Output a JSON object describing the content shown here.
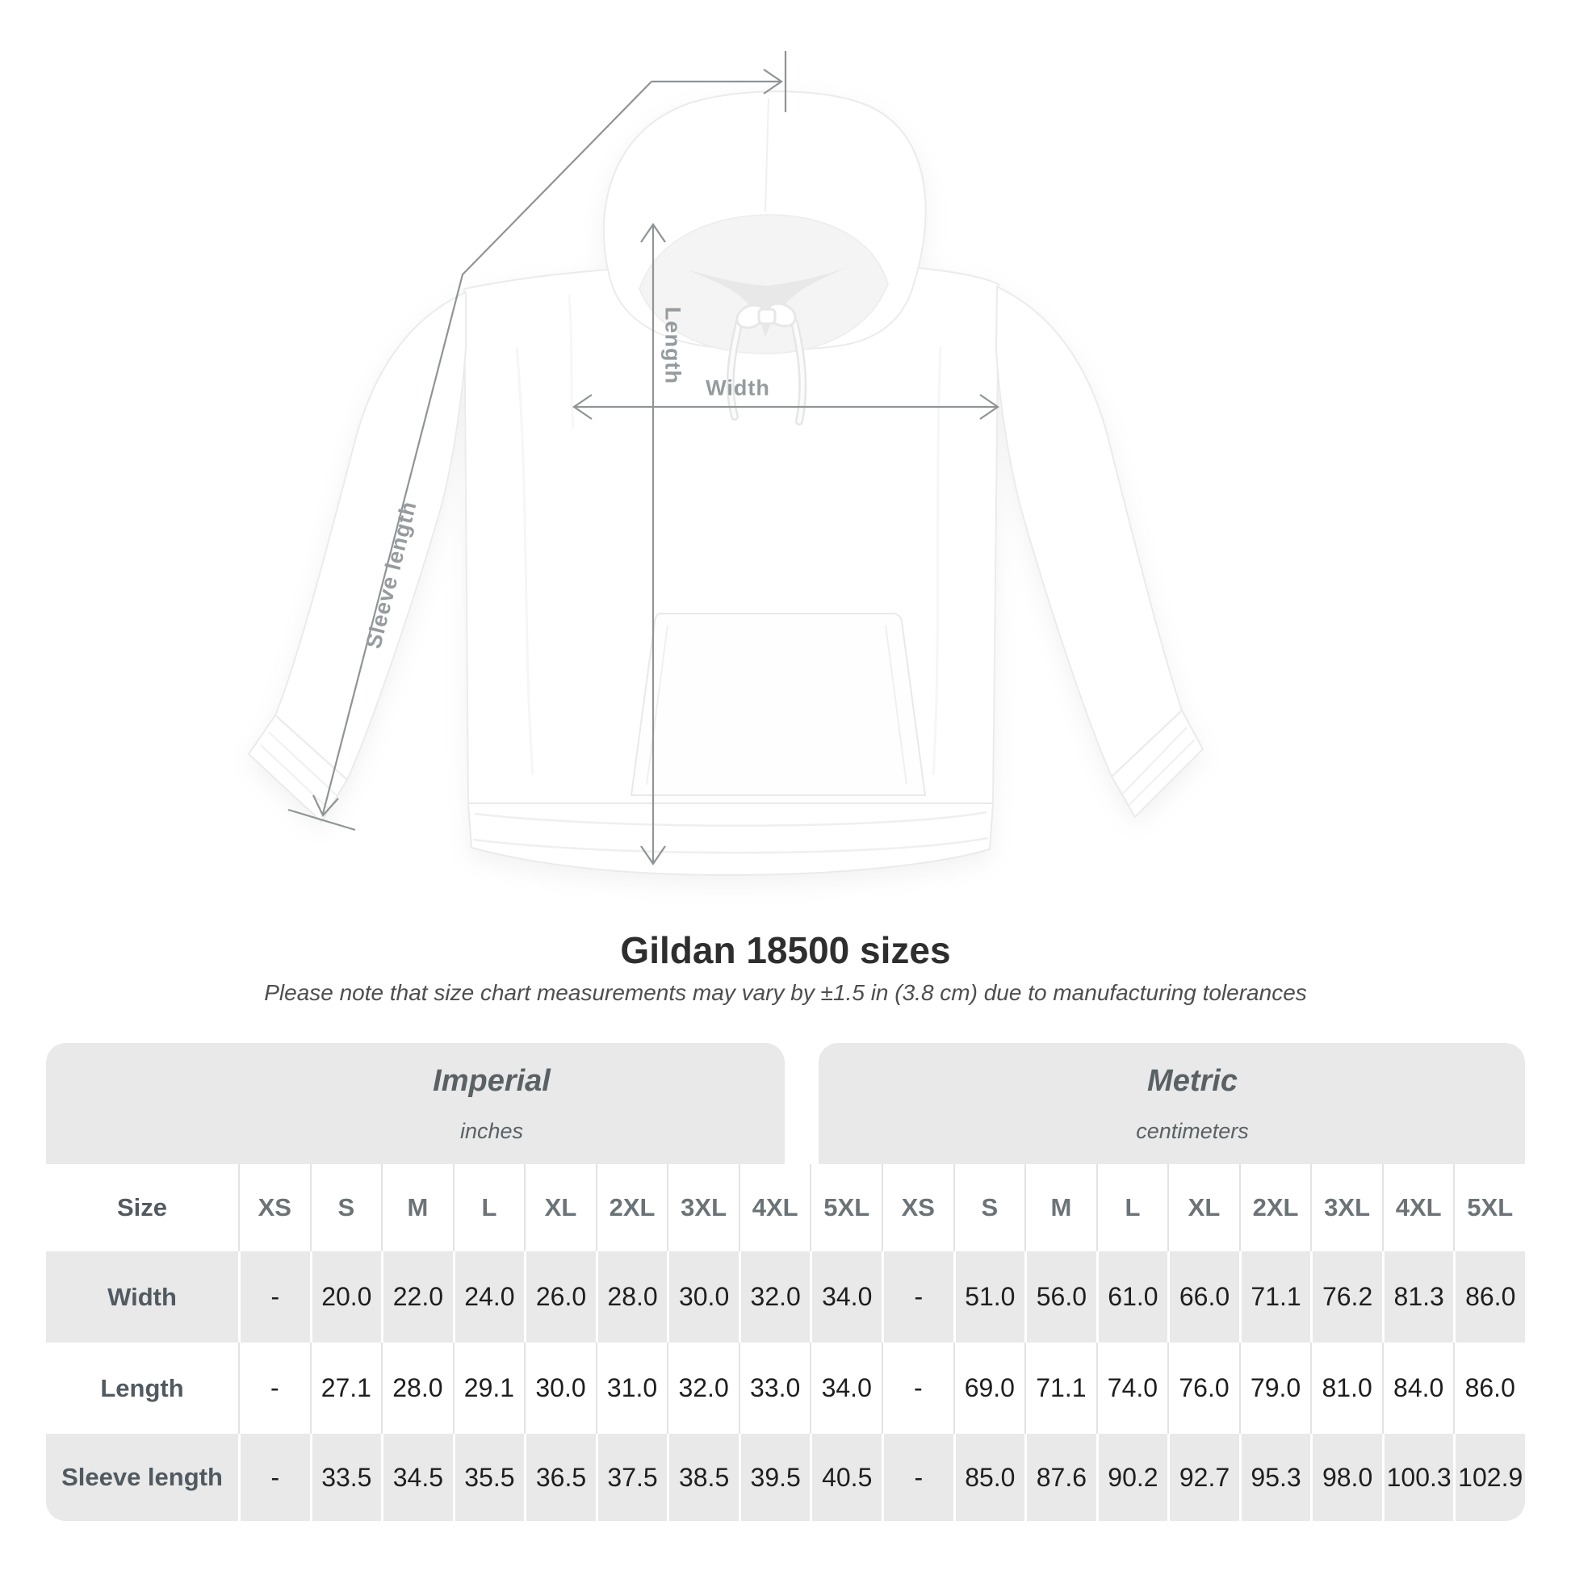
{
  "diagram": {
    "labels": {
      "length": "Length",
      "width": "Width",
      "sleeve": "Sleeve length"
    }
  },
  "title": "Gildan 18500 sizes",
  "note": "Please note that size chart measurements may vary by ±1.5 in (3.8 cm) due to manufacturing tolerances",
  "table": {
    "unit_groups": [
      {
        "name": "Imperial",
        "unit": "inches"
      },
      {
        "name": "Metric",
        "unit": "centimeters"
      }
    ],
    "size_label": "Size",
    "sizes": [
      "XS",
      "S",
      "M",
      "L",
      "XL",
      "2XL",
      "3XL",
      "4XL",
      "5XL"
    ],
    "rows": [
      {
        "label": "Width",
        "imperial": [
          "-",
          "20.0",
          "22.0",
          "24.0",
          "26.0",
          "28.0",
          "30.0",
          "32.0",
          "34.0"
        ],
        "metric": [
          "-",
          "51.0",
          "56.0",
          "61.0",
          "66.0",
          "71.1",
          "76.2",
          "81.3",
          "86.0"
        ]
      },
      {
        "label": "Length",
        "imperial": [
          "-",
          "27.1",
          "28.0",
          "29.1",
          "30.0",
          "31.0",
          "32.0",
          "33.0",
          "34.0"
        ],
        "metric": [
          "-",
          "69.0",
          "71.1",
          "74.0",
          "76.0",
          "79.0",
          "81.0",
          "84.0",
          "86.0"
        ]
      },
      {
        "label": "Sleeve length",
        "imperial": [
          "-",
          "33.5",
          "34.5",
          "35.5",
          "36.5",
          "37.5",
          "38.5",
          "39.5",
          "40.5"
        ],
        "metric": [
          "-",
          "85.0",
          "87.6",
          "90.2",
          "92.7",
          "95.3",
          "98.0",
          "100.3",
          "102.9"
        ]
      }
    ]
  },
  "chart_data": {
    "type": "table",
    "title": "Gildan 18500 sizes",
    "note": "Please note that size chart measurements may vary by ±1.5 in (3.8 cm) due to manufacturing tolerances",
    "columns": [
      "XS",
      "S",
      "M",
      "L",
      "XL",
      "2XL",
      "3XL",
      "4XL",
      "5XL"
    ],
    "units": [
      "inches",
      "centimeters"
    ],
    "measurements": [
      {
        "label": "Width",
        "inches": [
          null,
          20.0,
          22.0,
          24.0,
          26.0,
          28.0,
          30.0,
          32.0,
          34.0
        ],
        "centimeters": [
          null,
          51.0,
          56.0,
          61.0,
          66.0,
          71.1,
          76.2,
          81.3,
          86.0
        ]
      },
      {
        "label": "Length",
        "inches": [
          null,
          27.1,
          28.0,
          29.1,
          30.0,
          31.0,
          32.0,
          33.0,
          34.0
        ],
        "centimeters": [
          null,
          69.0,
          71.1,
          74.0,
          76.0,
          79.0,
          81.0,
          84.0,
          86.0
        ]
      },
      {
        "label": "Sleeve length",
        "inches": [
          null,
          33.5,
          34.5,
          35.5,
          36.5,
          37.5,
          38.5,
          39.5,
          40.5
        ],
        "centimeters": [
          null,
          85.0,
          87.6,
          90.2,
          92.7,
          95.3,
          98.0,
          100.3,
          102.9
        ]
      }
    ]
  },
  "colors": {
    "table_bg": "#e9e9e9",
    "dimension_line": "#8f9496",
    "dimension_label": "#959b9e",
    "title_text": "#2e2e2e",
    "note_text": "#4e4e4e",
    "number_text": "#1e1e1e",
    "header_text": "#6c7377",
    "row_label_text": "#515a61"
  }
}
